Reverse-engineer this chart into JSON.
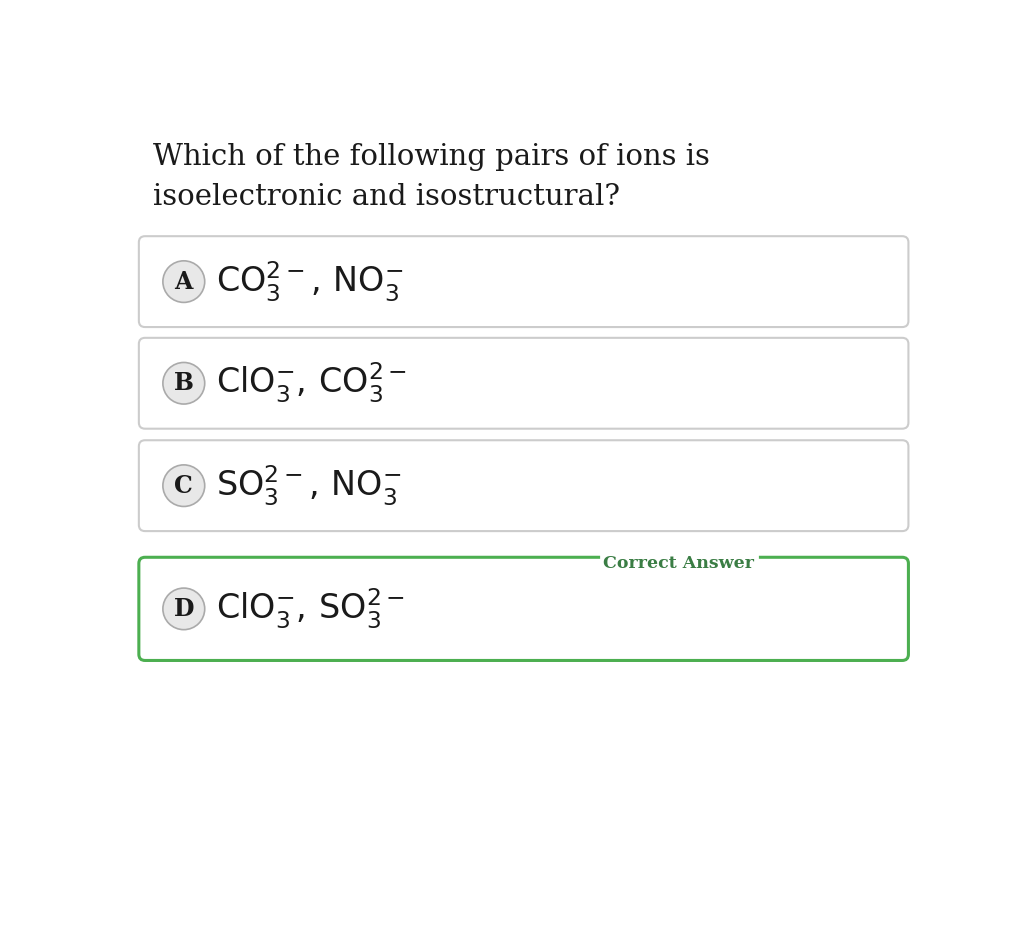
{
  "title_line1": "Which of the following pairs of ions is",
  "title_line2": "isoelectronic and isostructural?",
  "background_color": "#ffffff",
  "options": [
    {
      "label": "A",
      "formula": "$\\mathrm{CO}_{3}^{2-},\\,\\mathrm{NO}_{3}^{-}$",
      "is_correct": false
    },
    {
      "label": "B",
      "formula": "$\\mathrm{ClO}_{3}^{-},\\,\\mathrm{CO}_{3}^{2-}$",
      "is_correct": false
    },
    {
      "label": "C",
      "formula": "$\\mathrm{SO}_{3}^{2-},\\,\\mathrm{NO}_{3}^{-}$",
      "is_correct": false
    },
    {
      "label": "D",
      "formula": "$\\mathrm{ClO}_{3}^{-},\\,\\mathrm{SO}_{3}^{2-}$",
      "is_correct": true
    }
  ],
  "correct_answer_label": "Correct Answer",
  "correct_color": "#3a7d44",
  "label_circle_color": "#e8e8e8",
  "label_circle_edge": "#aaaaaa",
  "box_edge_color": "#cccccc",
  "box_correct_edge": "#4caf50",
  "text_color": "#1a1a1a",
  "title_fontsize": 21,
  "option_fontsize": 24,
  "label_fontsize": 17
}
